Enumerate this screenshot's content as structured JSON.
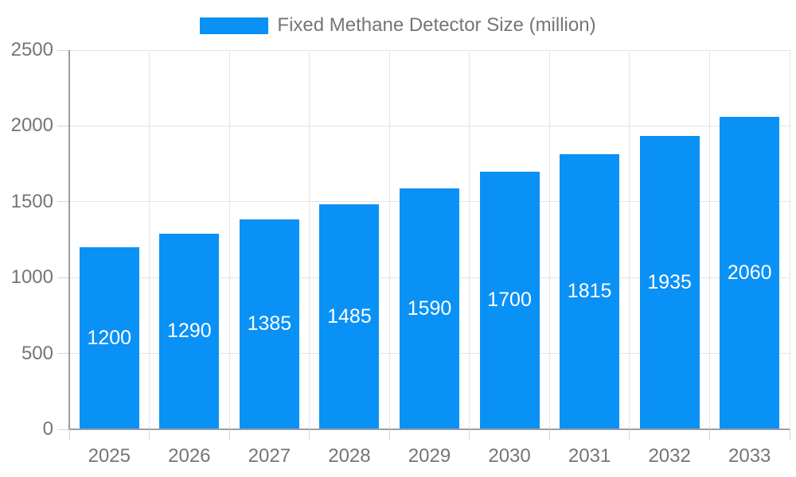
{
  "chart_data": {
    "type": "bar",
    "title": "Fixed Methane Detector Size (million)",
    "categories": [
      "2025",
      "2026",
      "2027",
      "2028",
      "2029",
      "2030",
      "2031",
      "2032",
      "2033"
    ],
    "values": [
      1200,
      1290,
      1385,
      1485,
      1590,
      1700,
      1815,
      1935,
      2060
    ],
    "series": [
      {
        "name": "Fixed Methane Detector Size (million)",
        "values": [
          1200,
          1290,
          1385,
          1485,
          1590,
          1700,
          1815,
          1935,
          2060
        ]
      }
    ],
    "xlabel": "",
    "ylabel": "",
    "ylim": [
      0,
      2500
    ],
    "yticks": [
      0,
      500,
      1000,
      1500,
      2000,
      2500
    ],
    "grid": true,
    "legend_position": "top",
    "value_labels": "inside-center",
    "colors": {
      "bar": "#0a91f5",
      "value_label": "#ffffff",
      "axis_text": "#757575",
      "grid_line": "#e3e3e3",
      "axis_line": "#9e9e9e",
      "tick": "#d6d6d6",
      "background": "#ffffff"
    }
  }
}
